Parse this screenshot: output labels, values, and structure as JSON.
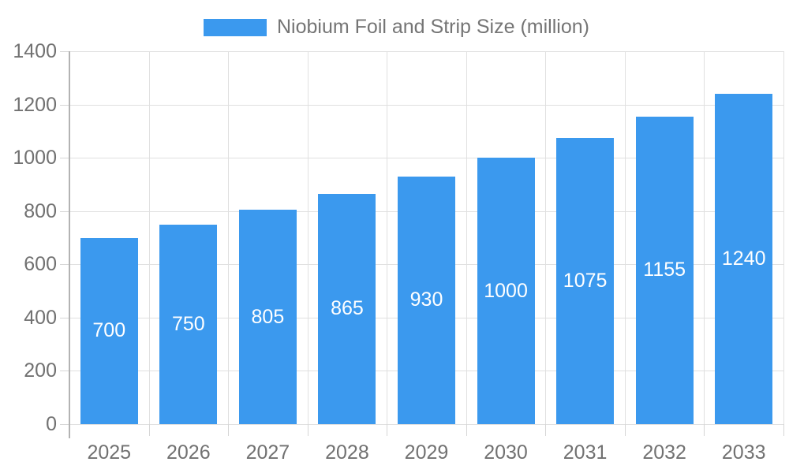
{
  "legend": {
    "label": "Niobium Foil and Strip Size (million)"
  },
  "colors": {
    "bar": "#3B99EE",
    "grid": "#e0e0e0",
    "axis": "#b3b3b3",
    "tick": "#d6d6d6",
    "axis_text": "#717171",
    "legend_text": "#757575",
    "bar_label_text": "#ffffff",
    "background": "#ffffff"
  },
  "chart_data": {
    "type": "bar",
    "title": "Niobium Foil and Strip Size (million)",
    "categories": [
      "2025",
      "2026",
      "2027",
      "2028",
      "2029",
      "2030",
      "2031",
      "2032",
      "2033"
    ],
    "values": [
      700,
      750,
      805,
      865,
      930,
      1000,
      1075,
      1155,
      1240
    ],
    "xlabel": "",
    "ylabel": "",
    "ylim": [
      0,
      1400
    ],
    "yticks": [
      0,
      200,
      400,
      600,
      800,
      1000,
      1200,
      1400
    ],
    "grid": true,
    "legend_position": "top",
    "bar_labels": "inside-center"
  }
}
